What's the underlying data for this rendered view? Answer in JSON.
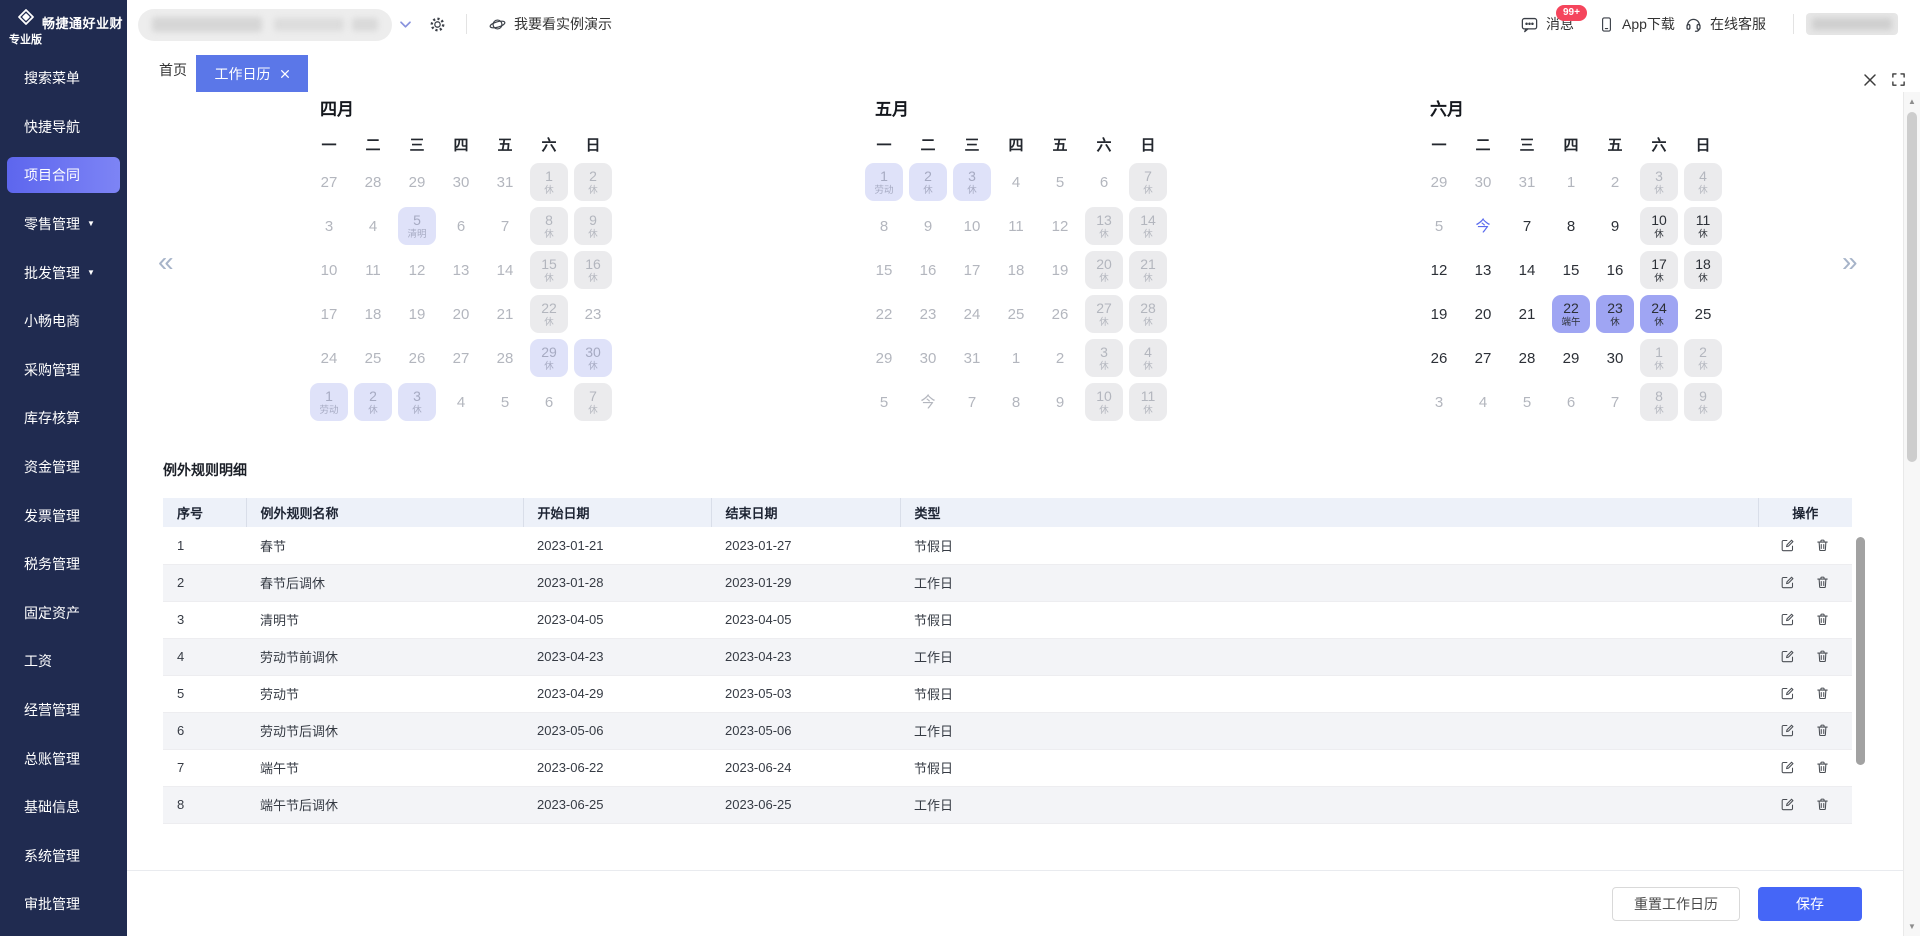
{
  "topbar": {
    "brand": "畅捷通好业财",
    "edition": "专业版",
    "demo_label": "我要看实例演示",
    "messages_label": "消息",
    "messages_badge": "99+",
    "app_download_label": "App下载",
    "support_label": "在线客服"
  },
  "tabs": {
    "home_label": "首页",
    "active_label": "工作日历"
  },
  "sidebar": {
    "items": [
      {
        "label": "搜索菜单"
      },
      {
        "label": "快捷导航"
      },
      {
        "label": "项目合同",
        "active": true
      },
      {
        "label": "零售管理",
        "caret": true
      },
      {
        "label": "批发管理",
        "caret": true
      },
      {
        "label": "小畅电商"
      },
      {
        "label": "采购管理"
      },
      {
        "label": "库存核算"
      },
      {
        "label": "资金管理"
      },
      {
        "label": "发票管理"
      },
      {
        "label": "税务管理"
      },
      {
        "label": "固定资产"
      },
      {
        "label": "工资"
      },
      {
        "label": "经营管理"
      },
      {
        "label": "总账管理"
      },
      {
        "label": "基础信息"
      },
      {
        "label": "系统管理"
      },
      {
        "label": "审批管理",
        "partial": true
      }
    ]
  },
  "calendar": {
    "weekdays": [
      "一",
      "二",
      "三",
      "四",
      "五",
      "六",
      "日"
    ],
    "prev_icon": "«",
    "next_icon": "»",
    "today_label": "今",
    "months": [
      {
        "title": "四月",
        "cells": [
          [
            "27",
            "",
            "p"
          ],
          [
            "28",
            "",
            "p"
          ],
          [
            "29",
            "",
            "p"
          ],
          [
            "30",
            "",
            "p"
          ],
          [
            "31",
            "",
            "p"
          ],
          [
            "1",
            "休",
            "rp"
          ],
          [
            "2",
            "休",
            "rp"
          ],
          [
            "3",
            "",
            "p"
          ],
          [
            "4",
            "",
            "p"
          ],
          [
            "5",
            "清明",
            "hp"
          ],
          [
            "6",
            "",
            "p"
          ],
          [
            "7",
            "",
            "p"
          ],
          [
            "8",
            "休",
            "rp"
          ],
          [
            "9",
            "休",
            "rp"
          ],
          [
            "10",
            "",
            "p"
          ],
          [
            "11",
            "",
            "p"
          ],
          [
            "12",
            "",
            "p"
          ],
          [
            "13",
            "",
            "p"
          ],
          [
            "14",
            "",
            "p"
          ],
          [
            "15",
            "休",
            "rp"
          ],
          [
            "16",
            "休",
            "rp"
          ],
          [
            "17",
            "",
            "p"
          ],
          [
            "18",
            "",
            "p"
          ],
          [
            "19",
            "",
            "p"
          ],
          [
            "20",
            "",
            "p"
          ],
          [
            "21",
            "",
            "p"
          ],
          [
            "22",
            "休",
            "rp"
          ],
          [
            "23",
            "",
            "p"
          ],
          [
            "24",
            "",
            "p"
          ],
          [
            "25",
            "",
            "p"
          ],
          [
            "26",
            "",
            "p"
          ],
          [
            "27",
            "",
            "p"
          ],
          [
            "28",
            "",
            "p"
          ],
          [
            "29",
            "休",
            "hp"
          ],
          [
            "30",
            "休",
            "hp"
          ],
          [
            "1",
            "劳动",
            "hp"
          ],
          [
            "2",
            "休",
            "hp"
          ],
          [
            "3",
            "休",
            "hp"
          ],
          [
            "4",
            "",
            "p"
          ],
          [
            "5",
            "",
            "p"
          ],
          [
            "6",
            "",
            "p"
          ],
          [
            "7",
            "休",
            "rp"
          ]
        ]
      },
      {
        "title": "五月",
        "cells": [
          [
            "1",
            "劳动",
            "hp"
          ],
          [
            "2",
            "休",
            "hp"
          ],
          [
            "3",
            "休",
            "hp"
          ],
          [
            "4",
            "",
            "p"
          ],
          [
            "5",
            "",
            "p"
          ],
          [
            "6",
            "",
            "p"
          ],
          [
            "7",
            "休",
            "rp"
          ],
          [
            "8",
            "",
            "p"
          ],
          [
            "9",
            "",
            "p"
          ],
          [
            "10",
            "",
            "p"
          ],
          [
            "11",
            "",
            "p"
          ],
          [
            "12",
            "",
            "p"
          ],
          [
            "13",
            "休",
            "rp"
          ],
          [
            "14",
            "休",
            "rp"
          ],
          [
            "15",
            "",
            "p"
          ],
          [
            "16",
            "",
            "p"
          ],
          [
            "17",
            "",
            "p"
          ],
          [
            "18",
            "",
            "p"
          ],
          [
            "19",
            "",
            "p"
          ],
          [
            "20",
            "休",
            "rp"
          ],
          [
            "21",
            "休",
            "rp"
          ],
          [
            "22",
            "",
            "p"
          ],
          [
            "23",
            "",
            "p"
          ],
          [
            "24",
            "",
            "p"
          ],
          [
            "25",
            "",
            "p"
          ],
          [
            "26",
            "",
            "p"
          ],
          [
            "27",
            "休",
            "rp"
          ],
          [
            "28",
            "休",
            "rp"
          ],
          [
            "29",
            "",
            "p"
          ],
          [
            "30",
            "",
            "p"
          ],
          [
            "31",
            "",
            "p"
          ],
          [
            "1",
            "",
            "p"
          ],
          [
            "2",
            "",
            "p"
          ],
          [
            "3",
            "休",
            "rp"
          ],
          [
            "4",
            "休",
            "rp"
          ],
          [
            "5",
            "",
            "p"
          ],
          [
            "今",
            "",
            "p"
          ],
          [
            "7",
            "",
            "p"
          ],
          [
            "8",
            "",
            "p"
          ],
          [
            "9",
            "",
            "p"
          ],
          [
            "10",
            "休",
            "rp"
          ],
          [
            "11",
            "休",
            "rp"
          ]
        ]
      },
      {
        "title": "六月",
        "cells": [
          [
            "29",
            "",
            "p"
          ],
          [
            "30",
            "",
            "p"
          ],
          [
            "31",
            "",
            "p"
          ],
          [
            "1",
            "",
            "p"
          ],
          [
            "2",
            "",
            "p"
          ],
          [
            "3",
            "休",
            "rp"
          ],
          [
            "4",
            "休",
            "rp"
          ],
          [
            "5",
            "",
            "p"
          ],
          [
            "今",
            "",
            "t"
          ],
          [
            "7",
            "",
            "c"
          ],
          [
            "8",
            "",
            "c"
          ],
          [
            "9",
            "",
            "c"
          ],
          [
            "10",
            "休",
            "r"
          ],
          [
            "11",
            "休",
            "r"
          ],
          [
            "12",
            "",
            "c"
          ],
          [
            "13",
            "",
            "c"
          ],
          [
            "14",
            "",
            "c"
          ],
          [
            "15",
            "",
            "c"
          ],
          [
            "16",
            "",
            "c"
          ],
          [
            "17",
            "休",
            "r"
          ],
          [
            "18",
            "休",
            "r"
          ],
          [
            "19",
            "",
            "c"
          ],
          [
            "20",
            "",
            "c"
          ],
          [
            "21",
            "",
            "c"
          ],
          [
            "22",
            "端午",
            "h"
          ],
          [
            "23",
            "休",
            "h"
          ],
          [
            "24",
            "休",
            "h"
          ],
          [
            "25",
            "",
            "c"
          ],
          [
            "26",
            "",
            "c"
          ],
          [
            "27",
            "",
            "c"
          ],
          [
            "28",
            "",
            "c"
          ],
          [
            "29",
            "",
            "c"
          ],
          [
            "30",
            "",
            "c"
          ],
          [
            "1",
            "休",
            "rp"
          ],
          [
            "2",
            "休",
            "rp"
          ],
          [
            "3",
            "",
            "p"
          ],
          [
            "4",
            "",
            "p"
          ],
          [
            "5",
            "",
            "p"
          ],
          [
            "6",
            "",
            "p"
          ],
          [
            "7",
            "",
            "p"
          ],
          [
            "8",
            "休",
            "rp"
          ],
          [
            "9",
            "休",
            "rp"
          ]
        ]
      }
    ]
  },
  "table": {
    "title": "例外规则明细",
    "columns": [
      "序号",
      "例外规则名称",
      "开始日期",
      "结束日期",
      "类型",
      "操作"
    ],
    "rows": [
      {
        "seq": "1",
        "name": "春节",
        "start": "2023-01-21",
        "end": "2023-01-27",
        "type": "节假日"
      },
      {
        "seq": "2",
        "name": "春节后调休",
        "start": "2023-01-28",
        "end": "2023-01-29",
        "type": "工作日"
      },
      {
        "seq": "3",
        "name": "清明节",
        "start": "2023-04-05",
        "end": "2023-04-05",
        "type": "节假日"
      },
      {
        "seq": "4",
        "name": "劳动节前调休",
        "start": "2023-04-23",
        "end": "2023-04-23",
        "type": "工作日"
      },
      {
        "seq": "5",
        "name": "劳动节",
        "start": "2023-04-29",
        "end": "2023-05-03",
        "type": "节假日"
      },
      {
        "seq": "6",
        "name": "劳动节后调休",
        "start": "2023-05-06",
        "end": "2023-05-06",
        "type": "工作日"
      },
      {
        "seq": "7",
        "name": "端午节",
        "start": "2023-06-22",
        "end": "2023-06-24",
        "type": "节假日"
      },
      {
        "seq": "8",
        "name": "端午节后调休",
        "start": "2023-06-25",
        "end": "2023-06-25",
        "type": "工作日"
      }
    ]
  },
  "footer": {
    "reset_label": "重置工作日历",
    "save_label": "保存"
  },
  "colors": {
    "sidebar_navy": "#202b50",
    "sidebar_footer_navy": "#1a2447",
    "active_item_gradient_from": "#5d66ee",
    "active_item_gradient_to": "#7d84f5",
    "tab_active_blue": "#5b77e8",
    "save_blue": "#4566f7",
    "badge_red": "#f5455c",
    "rest_gray_bg": "#ebebed",
    "holiday_light_purple": "#dfe2f9",
    "holiday_strong_purple": "#9fa5f3",
    "today_blue": "#5a6bee",
    "table_header_bg": "#edf1f9",
    "table_row_alt_bg": "#f3f4f7"
  }
}
